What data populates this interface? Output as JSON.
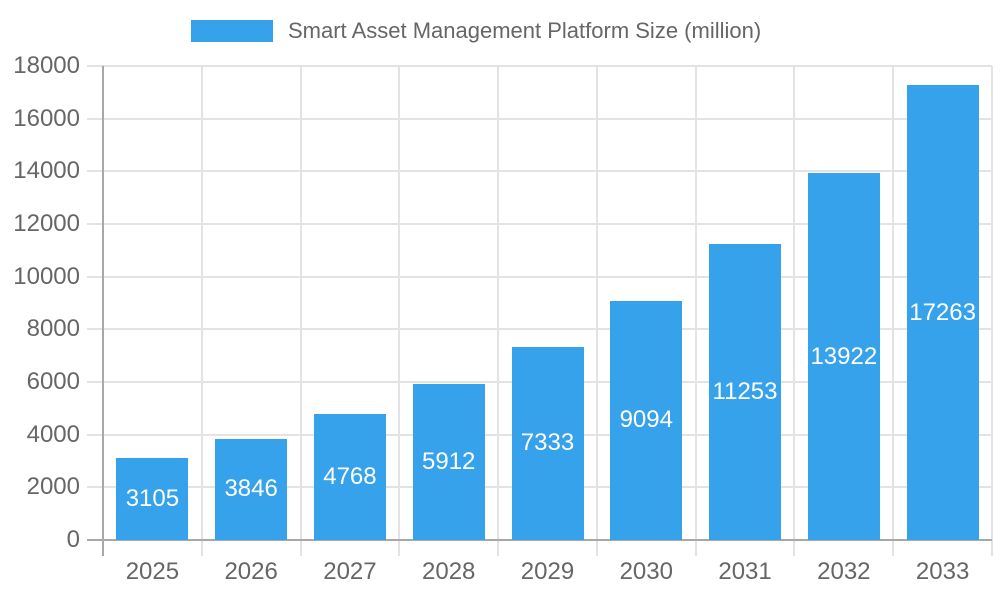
{
  "legend": {
    "label": "Smart Asset Management Platform Size (million)"
  },
  "colors": {
    "bar": "#36A2EB",
    "grid_line": "#e3e3e3",
    "axis_line": "#a8a8a8",
    "tick_text": "#666666",
    "value_text": "#ffffff",
    "background": "#ffffff"
  },
  "chart_data": {
    "type": "bar",
    "title": "",
    "xlabel": "",
    "ylabel": "",
    "categories": [
      "2025",
      "2026",
      "2027",
      "2028",
      "2029",
      "2030",
      "2031",
      "2032",
      "2033"
    ],
    "values": [
      3105,
      3846,
      4768,
      5912,
      7333,
      9094,
      11253,
      13922,
      17263
    ],
    "series_name": "Smart Asset Management Platform Size (million)",
    "ylim": [
      0,
      18000
    ],
    "ytick_step": 2000,
    "y_tick_labels": [
      "0",
      "2000",
      "4000",
      "6000",
      "8000",
      "10000",
      "12000",
      "14000",
      "16000",
      "18000"
    ],
    "grid": true,
    "legend_position": "top-center",
    "value_label_position": "inside-center"
  }
}
